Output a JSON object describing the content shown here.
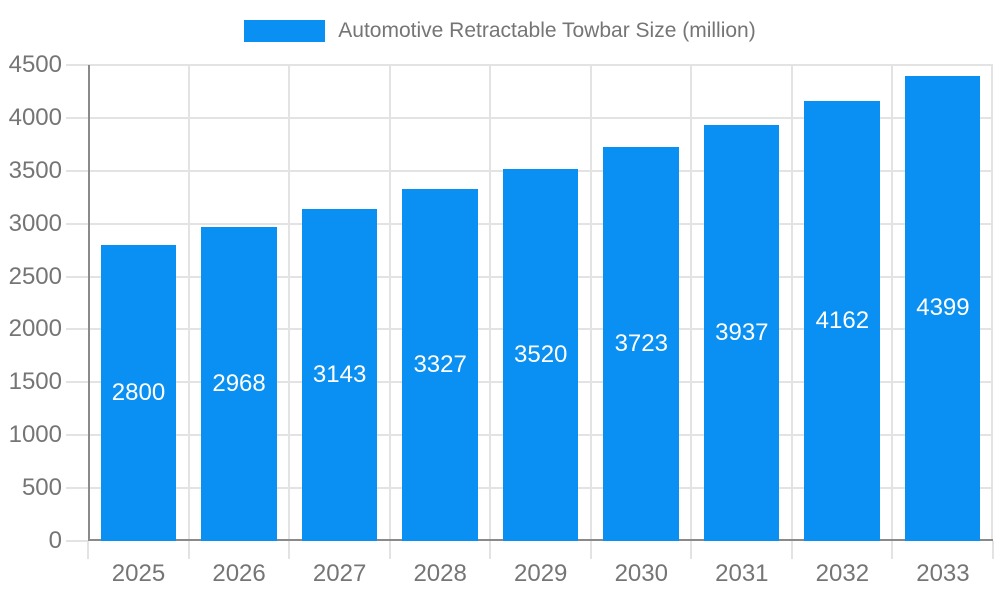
{
  "chart_data": {
    "type": "bar",
    "title": "Automotive Retractable Towbar Size (million)",
    "categories": [
      "2025",
      "2026",
      "2027",
      "2028",
      "2029",
      "2030",
      "2031",
      "2032",
      "2033"
    ],
    "values": [
      2800,
      2968,
      3143,
      3327,
      3520,
      3723,
      3937,
      4162,
      4399
    ],
    "xlabel": "",
    "ylabel": "",
    "ylim": [
      0,
      4500
    ],
    "ytick_step": 500,
    "grid": true,
    "legend_position": "top",
    "colors": {
      "bar": "#0a90f2",
      "value_label": "#ffffff",
      "axis": "#8a8a8a",
      "grid": "#e3e3e3",
      "tick_label": "#757575",
      "background": "#ffffff"
    }
  }
}
